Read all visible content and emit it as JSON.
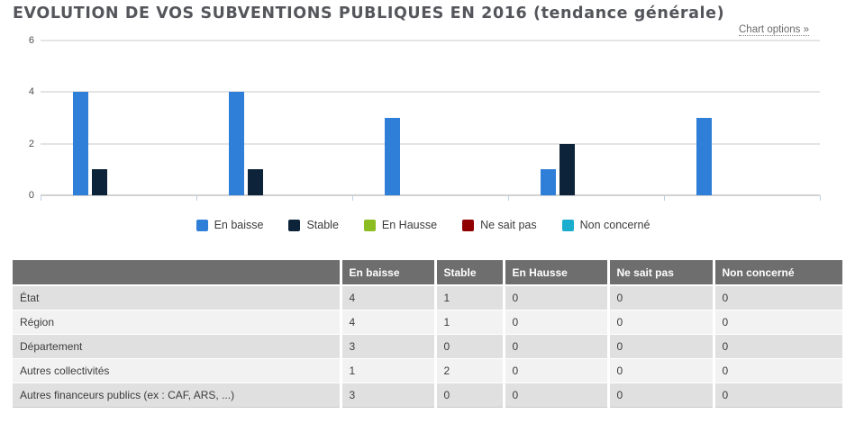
{
  "header": {
    "title": "EVOLUTION DE VOS SUBVENTIONS PUBLIQUES EN 2016 (tendance générale)",
    "chart_options_label": "Chart options »"
  },
  "colors": {
    "title_text": "#54565b",
    "link_text": "#6b6b6b",
    "gridline": "#e4e4e4",
    "axis_tick": "#c0d0e0",
    "table_header_bg": "#6e6e6e",
    "table_row_odd_bg": "#e0e0e0",
    "table_row_even_bg": "#f2f2f2"
  },
  "chart_data": {
    "type": "bar",
    "title": "EVOLUTION DE VOS SUBVENTIONS PUBLIQUES EN 2016 (tendance générale)",
    "categories": [
      "État",
      "Région",
      "Département",
      "Autres collectivités",
      "Autres financeurs publics (ex : CAF, ARS, ...)"
    ],
    "series": [
      {
        "name": "En baisse",
        "color": "#2f7ed8",
        "values": [
          4,
          4,
          3,
          1,
          3
        ]
      },
      {
        "name": "Stable",
        "color": "#0d233a",
        "values": [
          1,
          1,
          0,
          2,
          0
        ]
      },
      {
        "name": "En Hausse",
        "color": "#8bbc21",
        "values": [
          0,
          0,
          0,
          0,
          0
        ]
      },
      {
        "name": "Ne sait pas",
        "color": "#910000",
        "values": [
          0,
          0,
          0,
          0,
          0
        ]
      },
      {
        "name": "Non concerné",
        "color": "#1aadce",
        "values": [
          0,
          0,
          0,
          0,
          0
        ]
      }
    ],
    "xlabel": "",
    "ylabel": "",
    "ylim": [
      0,
      6
    ],
    "yticks": [
      0,
      2,
      4,
      6
    ],
    "x_tick_labels_visible": false,
    "grid": true,
    "legend_position": "bottom"
  },
  "table": {
    "columns": [
      "",
      "En baisse",
      "Stable",
      "En Hausse",
      "Ne sait pas",
      "Non concerné"
    ],
    "rows": [
      {
        "label": "État",
        "values": [
          4,
          1,
          0,
          0,
          0
        ]
      },
      {
        "label": "Région",
        "values": [
          4,
          1,
          0,
          0,
          0
        ]
      },
      {
        "label": "Département",
        "values": [
          3,
          0,
          0,
          0,
          0
        ]
      },
      {
        "label": "Autres collectivités",
        "values": [
          1,
          2,
          0,
          0,
          0
        ]
      },
      {
        "label": "Autres financeurs publics (ex : CAF, ARS, ...)",
        "values": [
          3,
          0,
          0,
          0,
          0
        ]
      }
    ]
  }
}
